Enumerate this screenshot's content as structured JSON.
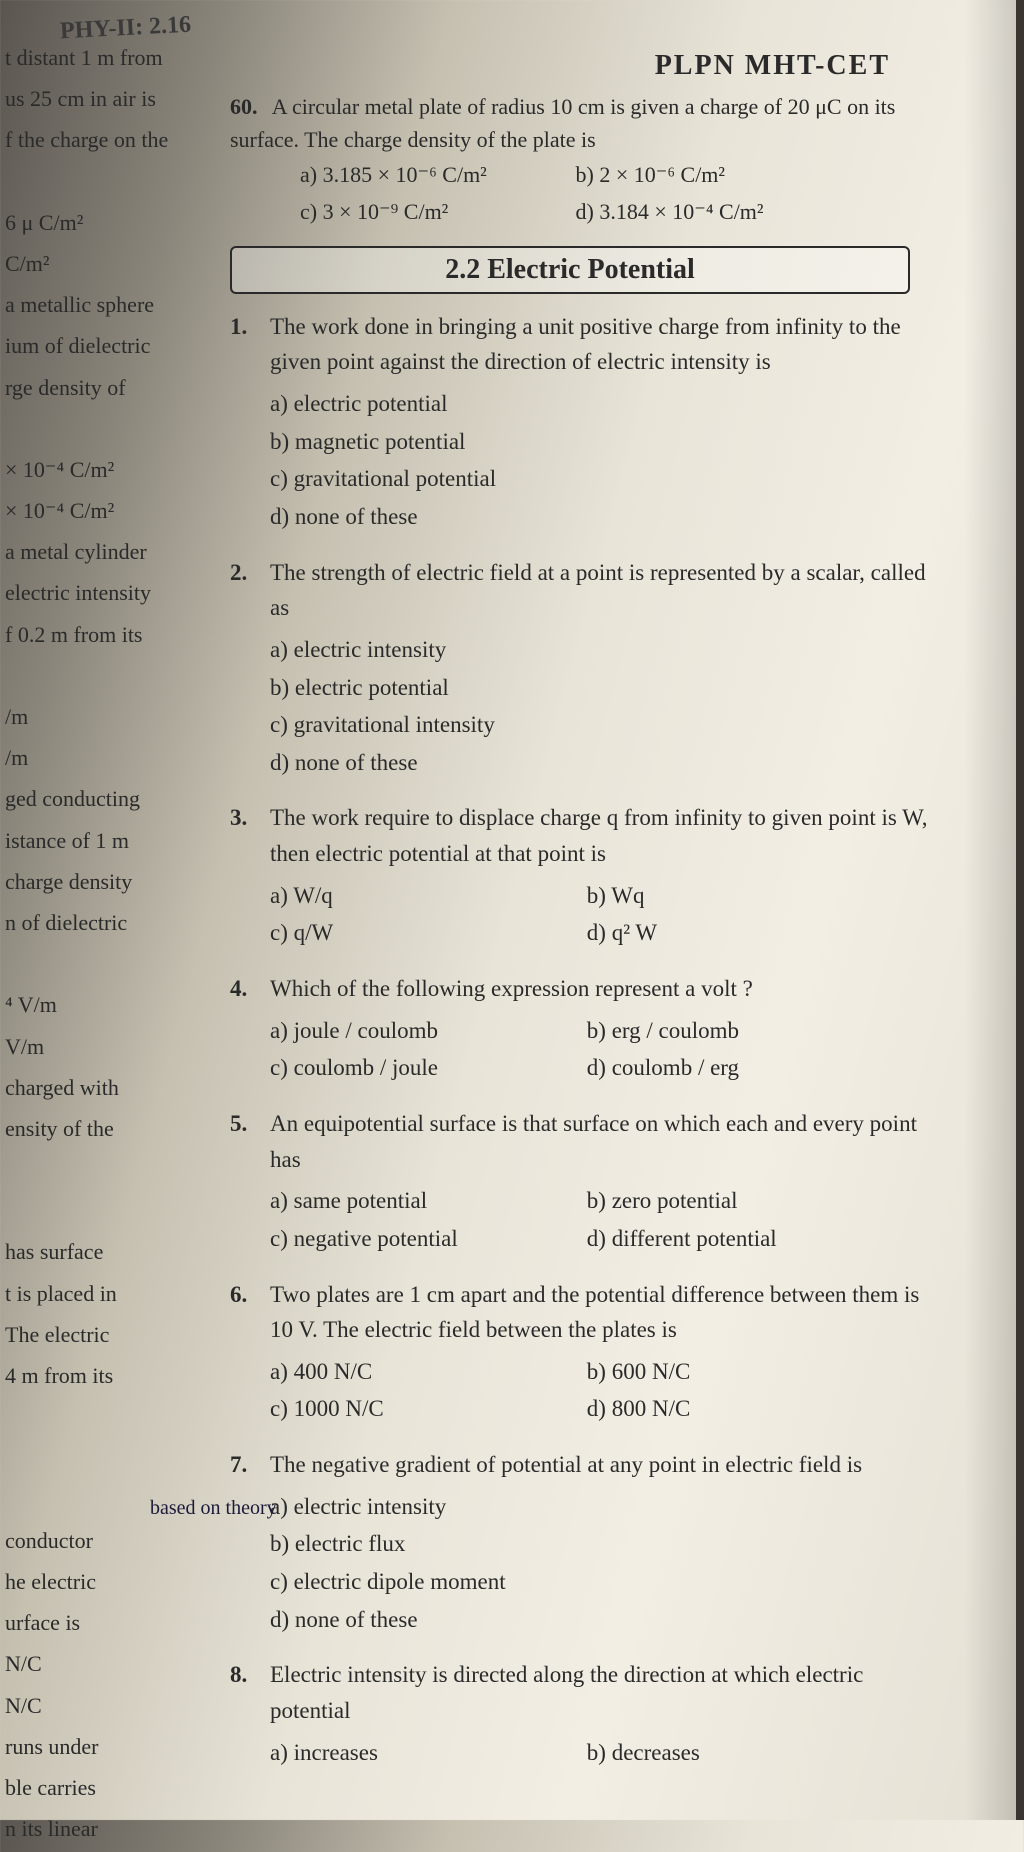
{
  "header": {
    "page_ref": "PHY-II: 2.16",
    "exam_name": "PLPN MHT-CET"
  },
  "left_fragments": [
    "t distant 1 m from",
    "us 25 cm in air is",
    "f the charge on the",
    "",
    "6 μ C/m²",
    "C/m²",
    "a metallic sphere",
    "ium of dielectric",
    "rge density of",
    "",
    "× 10⁻⁴ C/m²",
    "× 10⁻⁴ C/m²",
    "a metal cylinder",
    "electric intensity",
    "f 0.2 m from its",
    "",
    "/m",
    "/m",
    "ged conducting",
    "istance of 1 m",
    "charge density",
    "n of dielectric",
    "",
    "⁴ V/m",
    "V/m",
    "charged with",
    "ensity of the",
    "",
    "",
    "has surface",
    "t is placed in",
    "The electric",
    "4 m from its",
    "",
    "",
    "",
    "conductor",
    "he electric",
    "urface is",
    "N/C",
    "N/C",
    "runs under",
    "ble carries",
    "n its linear"
  ],
  "q60": {
    "num": "60.",
    "text": "A circular metal plate of radius 10 cm is given a charge of 20 μC on its surface. The charge density of the plate is",
    "opts": {
      "a": "a) 3.185 × 10⁻⁶ C/m²",
      "b": "b) 2 × 10⁻⁶ C/m²",
      "c": "c) 3 × 10⁻⁹ C/m²",
      "d": "d) 3.184 × 10⁻⁴ C/m²"
    }
  },
  "section": {
    "title": "2.2 Electric Potential"
  },
  "questions": [
    {
      "num": "1.",
      "text": "The work done in bringing a unit positive charge from infinity to the given point against the direction of electric intensity is",
      "layout": "full",
      "opts": [
        "a) electric potential",
        "b) magnetic potential",
        "c) gravitational potential",
        "d) none of these"
      ]
    },
    {
      "num": "2.",
      "text": "The strength of electric field at a point is represented by a scalar, called as",
      "layout": "full",
      "opts": [
        "a) electric intensity",
        "b) electric potential",
        "c) gravitational intensity",
        "d) none of these"
      ]
    },
    {
      "num": "3.",
      "text": "The work require to displace charge q from infinity to given point is W, then electric potential at that point is",
      "layout": "two",
      "opts": [
        "a) W/q",
        "b) Wq",
        "c) q/W",
        "d) q² W"
      ]
    },
    {
      "num": "4.",
      "text": "Which of the following expression represent a volt ?",
      "layout": "two",
      "opts": [
        "a) joule / coulomb",
        "b) erg / coulomb",
        "c) coulomb / joule",
        "d) coulomb / erg"
      ]
    },
    {
      "num": "5.",
      "text": "An equipotential surface is that surface on which each and every point has",
      "layout": "two",
      "opts": [
        "a) same potential",
        "b) zero potential",
        "c) negative potential",
        "d) different potential"
      ]
    },
    {
      "num": "6.",
      "text": "Two plates are 1 cm apart and the potential difference between them is 10 V. The electric field between the plates is",
      "layout": "two",
      "opts": [
        "a) 400 N/C",
        "b) 600 N/C",
        "c) 1000 N/C",
        "d) 800 N/C"
      ]
    },
    {
      "num": "7.",
      "text": "The negative gradient of potential at any point in electric field is",
      "layout": "full",
      "annotate": "based on theory",
      "opts": [
        "a) electric intensity",
        "b) electric flux",
        "c) electric dipole moment",
        "d) none of these"
      ]
    },
    {
      "num": "8.",
      "text": "Electric intensity is directed along the direction at which electric potential",
      "layout": "two",
      "opts": [
        "a) increases",
        "b) decreases"
      ]
    }
  ]
}
